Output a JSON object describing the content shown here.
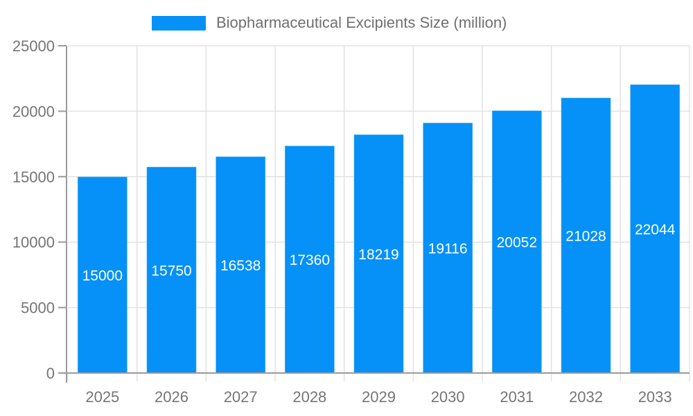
{
  "chart_data": {
    "type": "bar",
    "title": "Biopharmaceutical Excipients Size (million)",
    "xlabel": "",
    "ylabel": "",
    "categories": [
      "2025",
      "2026",
      "2027",
      "2028",
      "2029",
      "2030",
      "2031",
      "2032",
      "2033"
    ],
    "series": [
      {
        "name": "Biopharmaceutical Excipients Size (million)",
        "values": [
          15000,
          15750,
          16538,
          17360,
          18219,
          19116,
          20052,
          21028,
          22044
        ]
      }
    ],
    "value_labels": "inside-middle",
    "ylim": [
      0,
      25000
    ],
    "yticks": [
      0,
      5000,
      10000,
      15000,
      20000,
      25000
    ],
    "grid": true,
    "legend_position": "top",
    "colors": {
      "bar": "#0591f7",
      "bar_edge": "rgba(255,255,255,0.45)",
      "value_label": "#ffffff",
      "axis_text": "#757575",
      "legend_text": "#6f6f6f",
      "grid_line": "#e2e2e2",
      "axis_line": "#9a9a9a"
    }
  }
}
